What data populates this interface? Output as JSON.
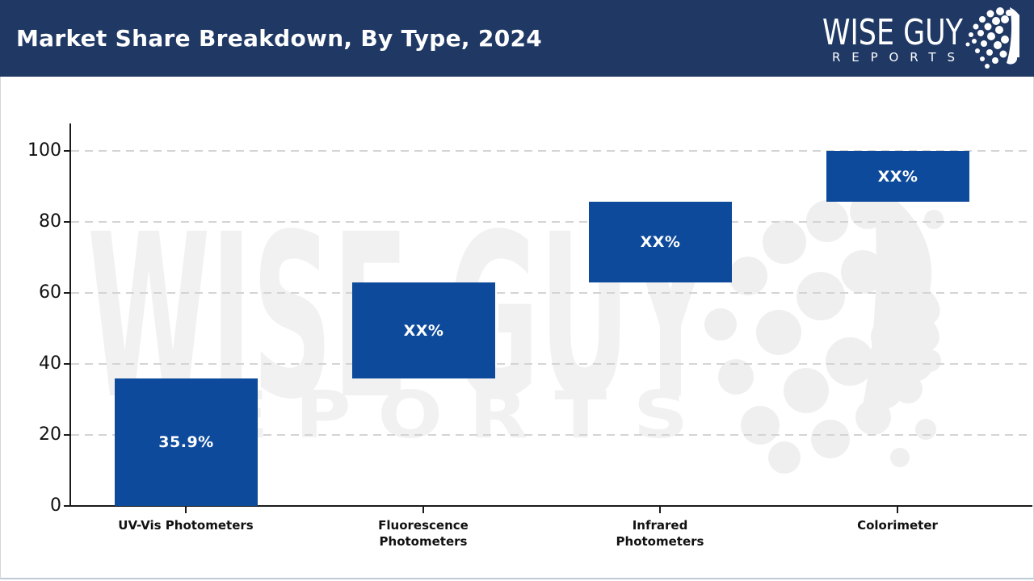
{
  "header": {
    "title": "Market Share Breakdown, By Type, 2024",
    "bg_color": "#1f3864",
    "logo_line1": "WISE GUY",
    "logo_line2": "REPORTS"
  },
  "watermark": {
    "line1": "WISE GUY",
    "line2": "R E P O R T S"
  },
  "chart_data": {
    "type": "bar",
    "variant": "waterfall",
    "title": "Market Share Breakdown, By Type, 2024",
    "categories": [
      "UV-Vis Photometers",
      "Fluorescence\nPhotometers",
      "Infrared\nPhotometers",
      "Colorimeter"
    ],
    "series": [
      {
        "name": "Market Share",
        "starts": [
          0,
          35.9,
          63.0,
          85.7
        ],
        "ends": [
          35.9,
          63.0,
          85.7,
          100.0
        ],
        "values": [
          35.9,
          27.1,
          22.7,
          14.3
        ]
      }
    ],
    "bar_labels": [
      "35.9%",
      "XX%",
      "XX%",
      "XX%"
    ],
    "y_ticks": [
      0,
      20,
      40,
      60,
      80,
      100
    ],
    "ylim": [
      0,
      107
    ],
    "xlabel": "",
    "ylabel": "",
    "grid": "horizontal-dashed",
    "legend": "none",
    "bar_color": "#0d4a9c",
    "bar_label_color": "#ffffff",
    "axis_color": "#1a1a1a"
  }
}
